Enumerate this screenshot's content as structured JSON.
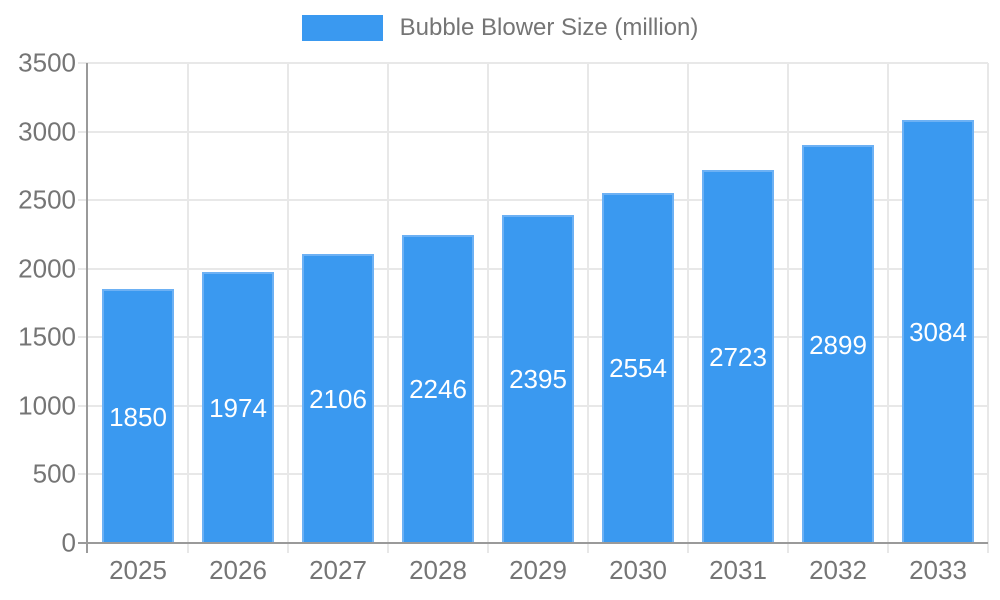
{
  "legend": {
    "items": [
      {
        "label": "Bubble Blower Size (million)",
        "color": "#3A99F0"
      }
    ]
  },
  "chart_data": {
    "type": "bar",
    "title": "",
    "series_name": "Bubble Blower Size (million)",
    "categories": [
      "2025",
      "2026",
      "2027",
      "2028",
      "2029",
      "2030",
      "2031",
      "2032",
      "2033"
    ],
    "values": [
      1850,
      1974,
      2106,
      2246,
      2395,
      2554,
      2723,
      2899,
      3084
    ],
    "xlabel": "",
    "ylabel": "",
    "ylim": [
      0,
      3500
    ],
    "yticks": [
      0,
      500,
      1000,
      1500,
      2000,
      2500,
      3000,
      3500
    ],
    "grid": true,
    "legend_position": "top",
    "bar_color": "#3A99F0",
    "bar_edge_color": "#6db1f4",
    "value_label_color": "#ffffff",
    "axis_text_color": "#757575",
    "grid_color": "#e8e8e8",
    "axis_line_color": "#9a9a9a"
  }
}
